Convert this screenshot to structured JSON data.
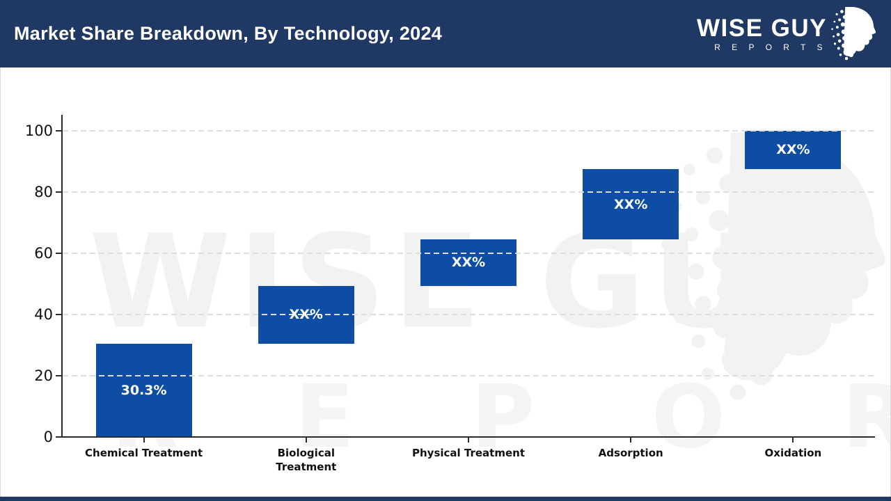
{
  "header": {
    "title": "Market Share Breakdown, By Technology, 2024",
    "logo": {
      "line1": "WISE GUY",
      "line2": "R E P O R T S"
    }
  },
  "watermark": {
    "line1": "WISE GUY",
    "line2": "R E P O R T S"
  },
  "colors": {
    "header_bg": "#203864",
    "bar": "#0d4da3",
    "grid": "#dedede",
    "axis": "#2b2b2b",
    "bar_label_text": "#ffffff"
  },
  "chart_data": {
    "type": "bar",
    "subtype": "waterfall",
    "title": "Market Share Breakdown, By Technology, 2024",
    "categories": [
      "Chemical Treatment",
      "Biological\nTreatment",
      "Physical Treatment",
      "Adsorption",
      "Oxidation"
    ],
    "bars": [
      {
        "category": "Chemical Treatment",
        "start": 0,
        "end": 30.3,
        "label": "30.3%"
      },
      {
        "category": "Biological Treatment",
        "start": 30.3,
        "end": 49.3,
        "label": "XX%"
      },
      {
        "category": "Physical Treatment",
        "start": 49.3,
        "end": 64.5,
        "label": "XX%"
      },
      {
        "category": "Adsorption",
        "start": 64.5,
        "end": 87.3,
        "label": "XX%"
      },
      {
        "category": "Oxidation",
        "start": 87.3,
        "end": 100,
        "label": "XX%"
      }
    ],
    "y_ticks": [
      0,
      20,
      40,
      60,
      80,
      100
    ],
    "ylim": [
      0,
      105
    ],
    "xlabel": "",
    "ylabel": "",
    "grid": "dashed-horizontal",
    "legend": "none"
  }
}
